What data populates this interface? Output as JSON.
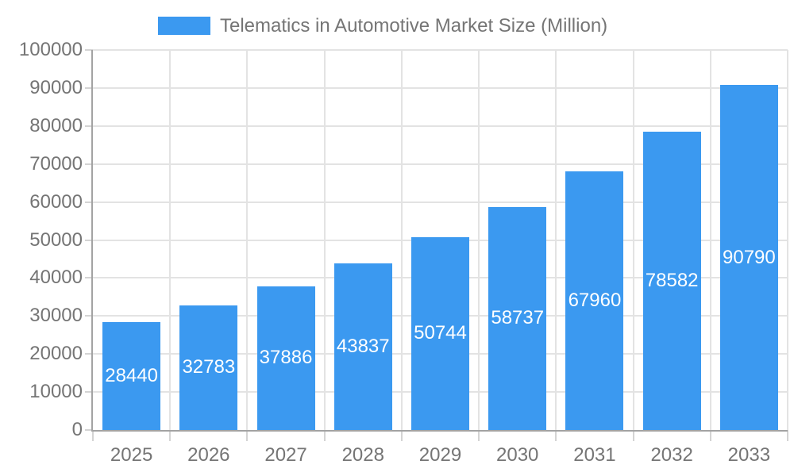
{
  "legend": {
    "label": "Telematics in Automotive Market Size (Million)"
  },
  "chart_data": {
    "type": "bar",
    "title": "Telematics in Automotive Market Size (Million)",
    "categories": [
      "2025",
      "2026",
      "2027",
      "2028",
      "2029",
      "2030",
      "2031",
      "2032",
      "2033"
    ],
    "values": [
      28440,
      32783,
      37886,
      43837,
      50744,
      58737,
      67960,
      78582,
      90790
    ],
    "xlabel": "",
    "ylabel": "",
    "ylim": [
      0,
      100000
    ],
    "ytick_step": 10000,
    "ytick_labels": [
      "0",
      "10000",
      "20000",
      "30000",
      "40000",
      "50000",
      "60000",
      "70000",
      "80000",
      "90000",
      "100000"
    ],
    "grid": true,
    "legend_position": "top",
    "value_label_position": "inside-middle",
    "colors": {
      "bar": "#3B99F0",
      "grid": "#E3E3E3",
      "tick": "#D4D4D4",
      "axis_line": "#A3A3A3",
      "axis_text": "#757575",
      "bar_label_text": "#FFFFFF",
      "background": "#FFFFFF"
    }
  }
}
